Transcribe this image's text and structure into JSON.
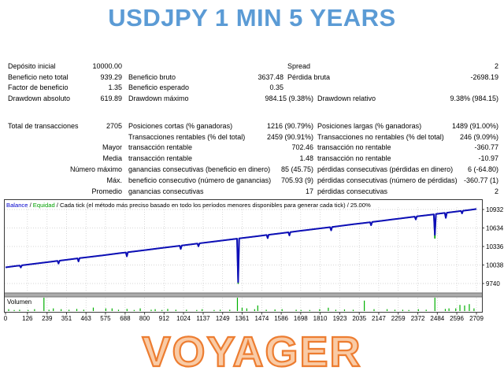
{
  "title": "USDJPY 1 MIN 5 YEARS",
  "watermark": "VOYAGER",
  "colors": {
    "title": "#5B9BD5",
    "watermark_fill": "#F9CBA6",
    "watermark_stroke": "#ED7D31",
    "balance": "#0e0eb8",
    "equity": "#00a000",
    "volume": "#00b000",
    "grid": "#c9c9c9",
    "frame": "#3a3a3a",
    "separator": "#ababab",
    "header_balance": "#0000cc",
    "header_equity": "#00a000"
  },
  "stats": {
    "rows": [
      {
        "label1": "Depósito inicial",
        "value1": "10000.00",
        "label2": "",
        "value2": "",
        "label3": "Spread",
        "value3": "2",
        "merge_first": false
      },
      {
        "label1": "Beneficio neto total",
        "value1": "939.29",
        "label2": "Beneficio bruto",
        "value2": "3637.48",
        "label3": "Pérdida bruta",
        "value3": "-2698.19",
        "merge_first": false
      },
      {
        "label1": "Factor de beneficio",
        "value1": "1.35",
        "label2": "Beneficio esperado",
        "value2": "0.35",
        "label3": "",
        "value3": "",
        "merge_first": false
      },
      {
        "label1": "Drawdown absoluto",
        "value1": "619.89",
        "label2": "Drawdown máximo",
        "value2": "984.15 (9.38%)",
        "label3": "Drawdown relativo",
        "value3": "9.38% (984.15)",
        "merge_first": false
      },
      {
        "label1": "Total de transacciones",
        "value1": "2705",
        "label2": "Posiciones cortas (% ganadoras)",
        "value2": "1216 (90.79%)",
        "label3": "Posiciones largas (% ganadoras)",
        "value3": "1489 (91.00%)",
        "merge_first": false
      },
      {
        "label1": "",
        "value1": "",
        "label2": "Transacciones rentables (% del total)",
        "value2": "2459 (90.91%)",
        "label3": "Transacciones no rentables (% del total)",
        "value3": "246 (9.09%)",
        "merge_first": false
      },
      {
        "label1": "Mayor",
        "value1": "",
        "label2": "transacción rentable",
        "value2": "702.46",
        "label3": "transacción no rentable",
        "value3": "-360.77",
        "merge_first": true
      },
      {
        "label1": "Media",
        "value1": "",
        "label2": "transacción rentable",
        "value2": "1.48",
        "label3": "transacción no rentable",
        "value3": "-10.97",
        "merge_first": true
      },
      {
        "label1": "Número máximo",
        "value1": "",
        "label2": "ganancias consecutivas (beneficio en dinero)",
        "value2": "85 (45.75)",
        "label3": "pérdidas consecutivas (pérdidas en dinero)",
        "value3": "6 (-64.80)",
        "merge_first": true
      },
      {
        "label1": "Máx.",
        "value1": "",
        "label2": "beneficio consecutivo (número de ganancias)",
        "value2": "705.93 (9)",
        "label3": "pérdidas consecutivas (número de pérdidas)",
        "value3": "-360.77 (1)",
        "merge_first": true
      },
      {
        "label1": "Promedio",
        "value1": "",
        "label2": "ganancias consecutivas",
        "value2": "17",
        "label3": "pérdidas consecutivas",
        "value3": "2",
        "merge_first": true
      }
    ]
  },
  "chart_data": {
    "type": "line",
    "header": {
      "balance_label": "Balance",
      "separator": " / ",
      "equity_label": "Equidad",
      "model_text": "Cada tick (el método más preciso basado en todo los períodos menores disponibles para generar cada tick)  / 25.00%"
    },
    "volume_label": "Volumen",
    "xlim": [
      0,
      2709
    ],
    "ylim": [
      9600,
      11010
    ],
    "x_ticks": [
      0,
      126,
      239,
      351,
      463,
      575,
      688,
      800,
      912,
      1024,
      1137,
      1249,
      1361,
      1474,
      1586,
      1698,
      1810,
      1923,
      2035,
      2147,
      2259,
      2372,
      2484,
      2596,
      2709
    ],
    "y_ticks": [
      10932,
      10634,
      10336,
      10038,
      9740
    ],
    "balance_series": [
      [
        0,
        10000
      ],
      [
        60,
        10021
      ],
      [
        82,
        10028
      ],
      [
        88,
        9998
      ],
      [
        94,
        10033
      ],
      [
        150,
        10052
      ],
      [
        210,
        10073
      ],
      [
        270,
        10094
      ],
      [
        299,
        10104
      ],
      [
        305,
        10061
      ],
      [
        311,
        10108
      ],
      [
        370,
        10128
      ],
      [
        414,
        10144
      ],
      [
        420,
        10095
      ],
      [
        426,
        10148
      ],
      [
        480,
        10166
      ],
      [
        540,
        10187
      ],
      [
        600,
        10208
      ],
      [
        660,
        10229
      ],
      [
        692,
        10240
      ],
      [
        698,
        10178
      ],
      [
        704,
        10244
      ],
      [
        760,
        10263
      ],
      [
        820,
        10284
      ],
      [
        880,
        10305
      ],
      [
        940,
        10326
      ],
      [
        1002,
        10347
      ],
      [
        1008,
        10296
      ],
      [
        1014,
        10351
      ],
      [
        1070,
        10371
      ],
      [
        1104,
        10383
      ],
      [
        1110,
        10338
      ],
      [
        1116,
        10387
      ],
      [
        1170,
        10406
      ],
      [
        1230,
        10426
      ],
      [
        1290,
        10447
      ],
      [
        1332,
        10462
      ],
      [
        1338,
        9763
      ],
      [
        1344,
        10466
      ],
      [
        1400,
        10485
      ],
      [
        1460,
        10506
      ],
      [
        1502,
        10521
      ],
      [
        1508,
        10471
      ],
      [
        1514,
        10525
      ],
      [
        1570,
        10544
      ],
      [
        1627,
        10564
      ],
      [
        1633,
        10514
      ],
      [
        1639,
        10568
      ],
      [
        1700,
        10589
      ],
      [
        1760,
        10610
      ],
      [
        1820,
        10631
      ],
      [
        1867,
        10647
      ],
      [
        1873,
        10595
      ],
      [
        1879,
        10651
      ],
      [
        1940,
        10672
      ],
      [
        2000,
        10693
      ],
      [
        2060,
        10714
      ],
      [
        2097,
        10727
      ],
      [
        2103,
        10679
      ],
      [
        2109,
        10731
      ],
      [
        2170,
        10752
      ],
      [
        2230,
        10773
      ],
      [
        2290,
        10794
      ],
      [
        2354,
        10816
      ],
      [
        2360,
        10771
      ],
      [
        2366,
        10820
      ],
      [
        2430,
        10842
      ],
      [
        2464,
        10854
      ],
      [
        2470,
        10524
      ],
      [
        2476,
        10858
      ],
      [
        2527,
        10876
      ],
      [
        2533,
        10796
      ],
      [
        2539,
        10880
      ],
      [
        2590,
        10898
      ],
      [
        2620,
        10908
      ],
      [
        2626,
        10868
      ],
      [
        2632,
        10912
      ],
      [
        2670,
        10925
      ],
      [
        2709,
        10939
      ]
    ],
    "equity_dips": [
      [
        1338,
        9742
      ],
      [
        2470,
        10470
      ]
    ],
    "volume": [
      [
        18,
        0.14
      ],
      [
        50,
        0.08
      ],
      [
        81,
        0.1
      ],
      [
        130,
        0.08
      ],
      [
        167,
        0.14
      ],
      [
        221,
        1
      ],
      [
        250,
        0.1
      ],
      [
        275,
        0.2
      ],
      [
        320,
        0.14
      ],
      [
        365,
        0.1
      ],
      [
        410,
        0.16
      ],
      [
        450,
        0.1
      ],
      [
        505,
        0.26
      ],
      [
        577,
        0.2
      ],
      [
        613,
        0.2
      ],
      [
        650,
        0.1
      ],
      [
        699,
        0.16
      ],
      [
        740,
        0.08
      ],
      [
        775,
        0.2
      ],
      [
        838,
        0.1
      ],
      [
        861,
        0.14
      ],
      [
        900,
        0.08
      ],
      [
        933,
        0.16
      ],
      [
        980,
        0.1
      ],
      [
        1041,
        0.1
      ],
      [
        1100,
        0.08
      ],
      [
        1131,
        0.14
      ],
      [
        1200,
        0.08
      ],
      [
        1235,
        0.1
      ],
      [
        1290,
        0.1
      ],
      [
        1334,
        1
      ],
      [
        1361,
        0.25
      ],
      [
        1388,
        0.2
      ],
      [
        1433,
        0.14
      ],
      [
        1451,
        0.42
      ],
      [
        1500,
        0.1
      ],
      [
        1550,
        0.12
      ],
      [
        1591,
        0.14
      ],
      [
        1672,
        0.1
      ],
      [
        1700,
        0.08
      ],
      [
        1750,
        0.08
      ],
      [
        1807,
        0.14
      ],
      [
        1857,
        0.25
      ],
      [
        1900,
        0.1
      ],
      [
        1950,
        0.12
      ],
      [
        2000,
        0.1
      ],
      [
        2064,
        0.78
      ],
      [
        2120,
        0.14
      ],
      [
        2195,
        0.14
      ],
      [
        2240,
        0.1
      ],
      [
        2285,
        0.1
      ],
      [
        2320,
        0.08
      ],
      [
        2375,
        0.14
      ],
      [
        2420,
        0.1
      ],
      [
        2470,
        1
      ],
      [
        2530,
        0.16
      ],
      [
        2551,
        0.2
      ],
      [
        2590,
        0.2
      ],
      [
        2614,
        0.46
      ],
      [
        2641,
        0.42
      ],
      [
        2668,
        0.52
      ],
      [
        2695,
        0.2
      ]
    ]
  }
}
